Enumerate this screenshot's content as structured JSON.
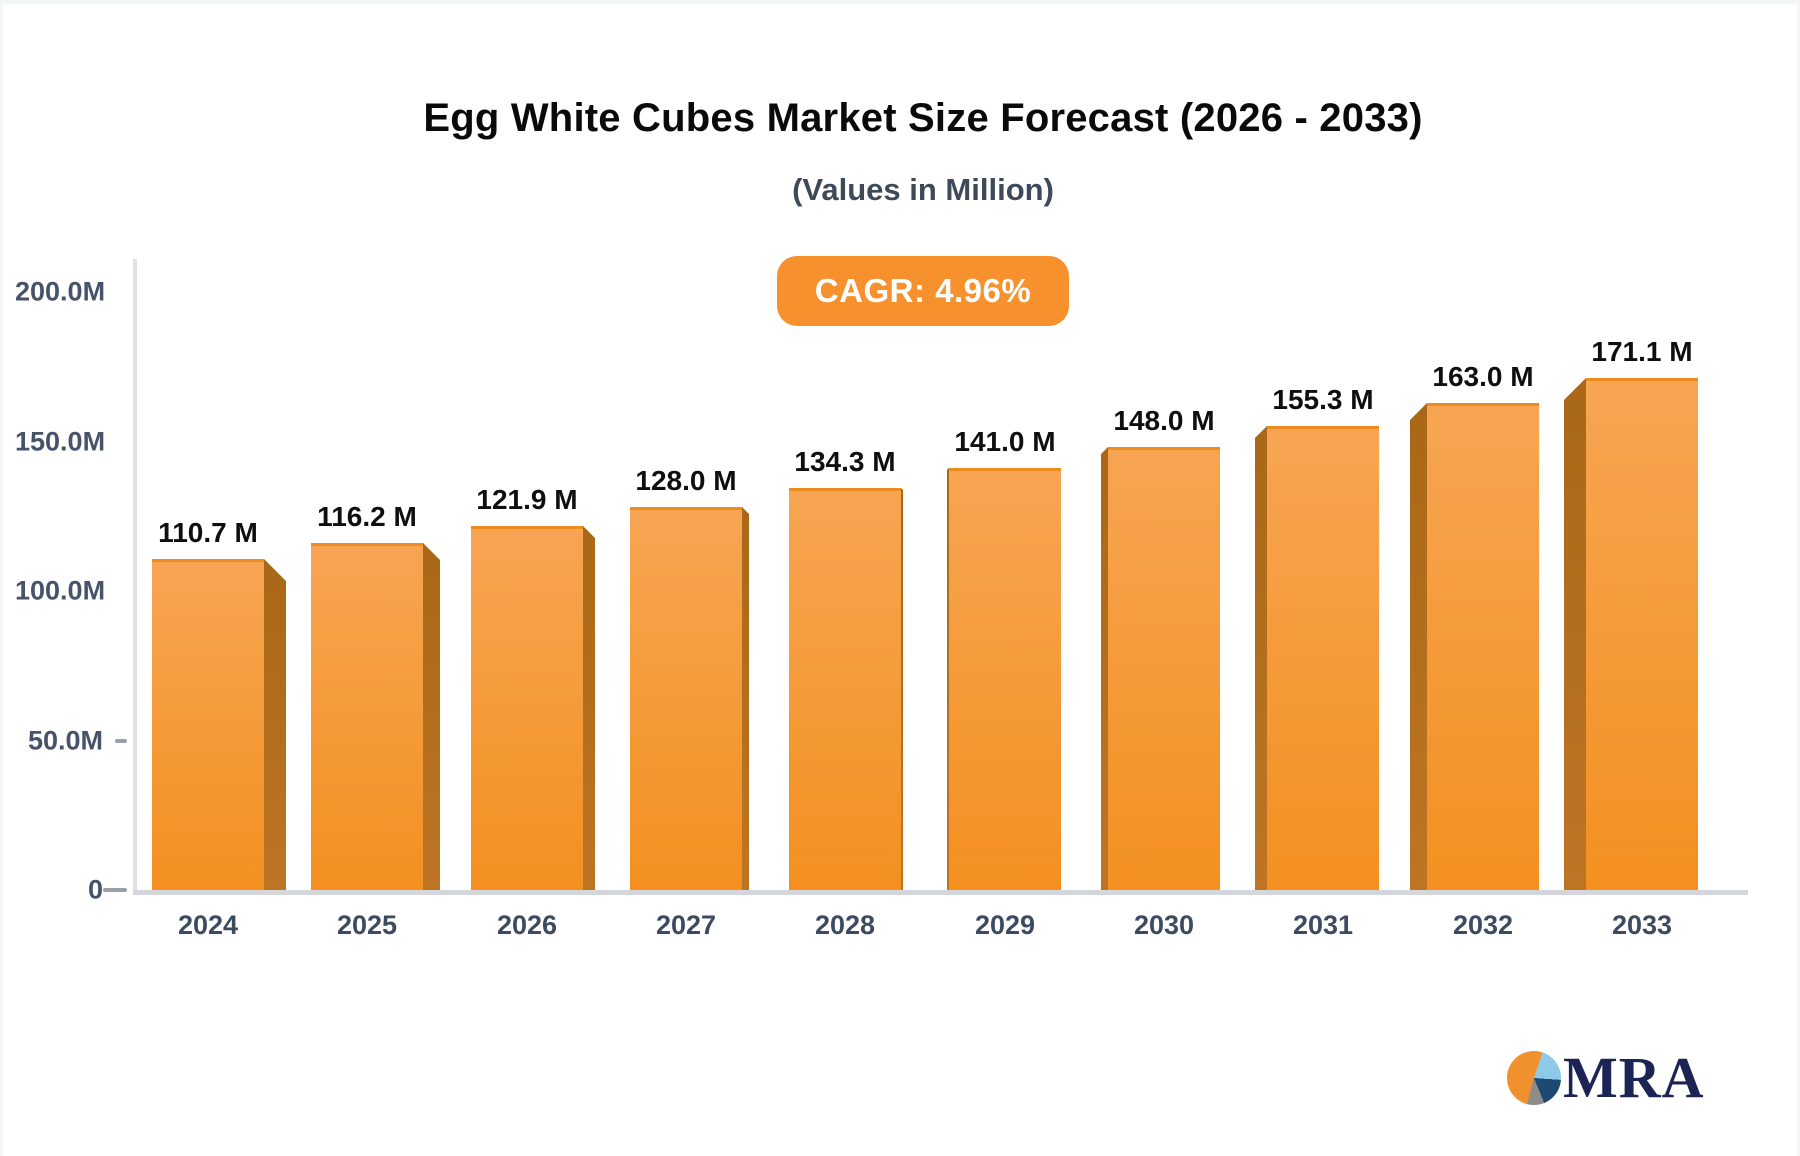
{
  "header": {
    "title": "Egg White Cubes Market Size Forecast (2026 - 2033)",
    "subtitle": "(Values in Million)",
    "cagr_badge": "CAGR: 4.96%"
  },
  "chart_data": {
    "type": "bar",
    "title": "Egg White Cubes Market Size Forecast (2026 - 2033)",
    "subtitle": "(Values in Million)",
    "unit": "Million",
    "categories": [
      "2024",
      "2025",
      "2026",
      "2027",
      "2028",
      "2029",
      "2030",
      "2031",
      "2032",
      "2033"
    ],
    "values": [
      110.7,
      116.2,
      121.9,
      128.0,
      134.3,
      141.0,
      148.0,
      155.3,
      163.0,
      171.1
    ],
    "bar_labels": [
      "110.7 M",
      "116.2 M",
      "121.9 M",
      "128.0 M",
      "134.3 M",
      "141.0 M",
      "148.0 M",
      "155.3 M",
      "163.0 M",
      "171.1 M"
    ],
    "y_ticks": [
      {
        "value": 0,
        "label": "0",
        "tick_len": 24
      },
      {
        "value": 50,
        "label": "50.0M",
        "tick_len": 12
      },
      {
        "value": 100,
        "label": "100.0M",
        "tick_len": 0
      },
      {
        "value": 150,
        "label": "150.0M",
        "tick_len": 0
      },
      {
        "value": 200,
        "label": "200.0M",
        "tick_len": 0
      }
    ],
    "ylim": [
      0,
      200
    ],
    "grid": false,
    "legend": false,
    "style": "3d-perspective-columns"
  },
  "colors": {
    "bar_face_top": "#f7a553",
    "bar_face_bottom": "#f39020",
    "bar_side": "#b26e1f",
    "badge": "#f6912e",
    "axis": "#d3d7dc",
    "logo_navy": "#1b2454",
    "logo_orange": "#f0912d",
    "logo_lightblue": "#8fc9e9",
    "logo_darkblue": "#1c4a72",
    "logo_gray": "#8f8c8a"
  },
  "logo": {
    "text": "MRA"
  }
}
